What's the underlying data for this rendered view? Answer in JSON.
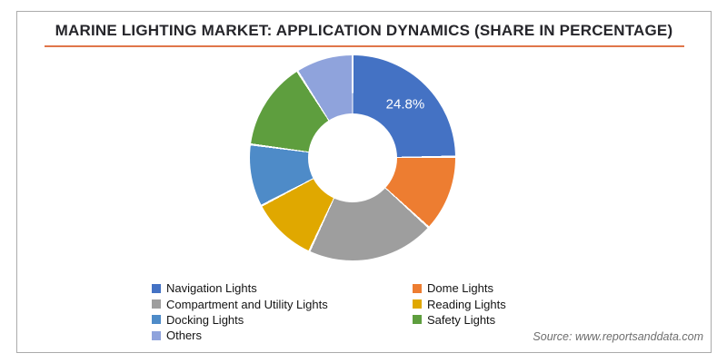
{
  "chart_data": {
    "type": "pie",
    "subtype": "donut",
    "title": "MARINE LIGHTING MARKET: APPLICATION DYNAMICS (SHARE IN PERCENTAGE)",
    "categories": [
      "Navigation Lights",
      "Dome Lights",
      "Compartment and Utility Lights",
      "Reading Lights",
      "Docking Lights",
      "Safety Lights",
      "Others"
    ],
    "values": [
      24.8,
      12.0,
      20.1,
      10.4,
      9.8,
      13.9,
      9.0
    ],
    "colors": [
      "#4472C4",
      "#ED7D31",
      "#9E9E9E",
      "#E0A800",
      "#4E8BC8",
      "#5E9E3E",
      "#8FA3DC"
    ],
    "visible_data_label": {
      "category": "Navigation Lights",
      "text": "24.8%"
    },
    "start_angle_deg": 0,
    "direction": "clockwise",
    "donut_hole_ratio": 0.43,
    "slice_gap_color": "#FFFFFF",
    "legend_position": "bottom",
    "legend_columns": 2
  },
  "header": {
    "underline_color": "#E0764A"
  },
  "footer": {
    "source": "Source: www.reportsanddata.com"
  }
}
